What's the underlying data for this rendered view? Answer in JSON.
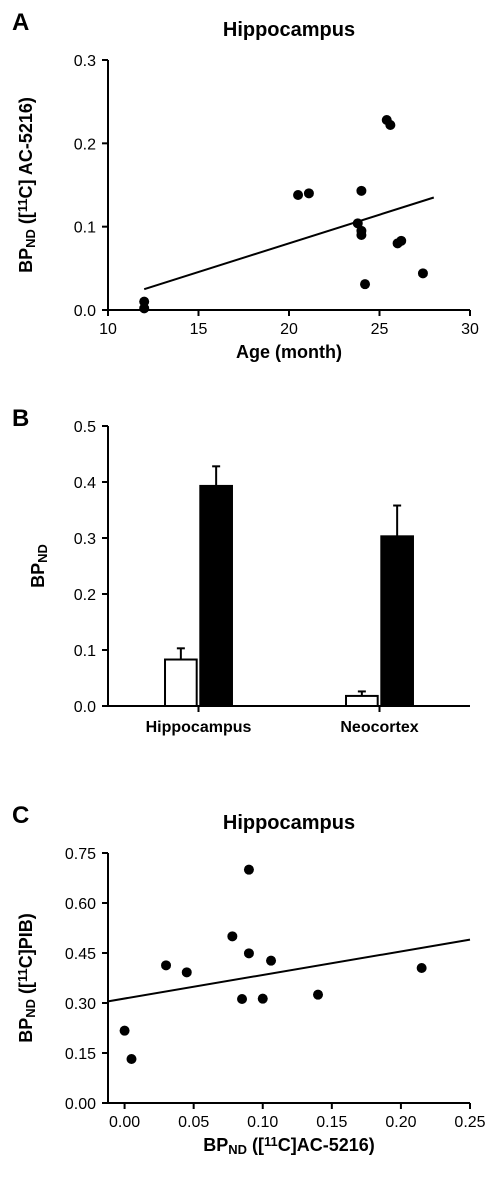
{
  "panelA": {
    "label": "A",
    "title": "Hippocampus",
    "type": "scatter",
    "xlabel": "Age (month)",
    "ylabel": "BP_ND ([^11C] AC-5216)",
    "xlim": [
      10,
      30
    ],
    "ylim": [
      0,
      0.3
    ],
    "xticks": [
      10,
      15,
      20,
      25,
      30
    ],
    "yticks": [
      0.0,
      0.1,
      0.2,
      0.3
    ],
    "points": [
      [
        12,
        0.01
      ],
      [
        12,
        0.002
      ],
      [
        20.5,
        0.138
      ],
      [
        21.1,
        0.14
      ],
      [
        23.8,
        0.104
      ],
      [
        24,
        0.143
      ],
      [
        24,
        0.09
      ],
      [
        24,
        0.095
      ],
      [
        24.2,
        0.031
      ],
      [
        25.4,
        0.228
      ],
      [
        25.6,
        0.222
      ],
      [
        26,
        0.08
      ],
      [
        26.2,
        0.083
      ],
      [
        27.4,
        0.044
      ]
    ],
    "fit_line": {
      "x1": 12,
      "y1": 0.025,
      "x2": 28,
      "y2": 0.135
    },
    "marker_color": "#000000",
    "marker_radius": 5,
    "line_color": "#000000",
    "line_width": 2,
    "axis_color": "#000000",
    "axis_width": 2,
    "tick_len": 6,
    "tick_fontsize": 16,
    "label_fontsize": 18,
    "title_fontsize": 20,
    "panel_label_fontsize": 24
  },
  "panelB": {
    "label": "B",
    "type": "bar",
    "ylabel": "BP_ND",
    "ylim": [
      0,
      0.5
    ],
    "yticks": [
      0.0,
      0.1,
      0.2,
      0.3,
      0.4,
      0.5
    ],
    "groups": [
      "Hippocampus",
      "Neocortex"
    ],
    "series": [
      {
        "fill": "#ffffff",
        "stroke": "#000000",
        "values": [
          0.083,
          0.018
        ],
        "errors": [
          0.02,
          0.008
        ]
      },
      {
        "fill": "#000000",
        "stroke": "#000000",
        "values": [
          0.393,
          0.303
        ],
        "errors": [
          0.035,
          0.055
        ]
      }
    ],
    "bar_width": 0.35,
    "gap_between": 0.02,
    "group_gap": 0.6,
    "axis_color": "#000000",
    "axis_width": 2,
    "tick_len": 6,
    "tick_fontsize": 16,
    "label_fontsize": 18,
    "panel_label_fontsize": 24,
    "err_cap": 8,
    "err_width": 2
  },
  "panelC": {
    "label": "C",
    "title": "Hippocampus",
    "type": "scatter",
    "xlabel": "BP_ND ([^11C]AC-5216)",
    "ylabel": "BP_ND ([^11C]PIB)",
    "xlim": [
      -0.012,
      0.25
    ],
    "ylim": [
      0,
      0.75
    ],
    "xticks": [
      0.0,
      0.05,
      0.1,
      0.15,
      0.2,
      0.25
    ],
    "yticks": [
      0.0,
      0.15,
      0.3,
      0.45,
      0.6,
      0.75
    ],
    "points": [
      [
        0.0,
        0.217
      ],
      [
        0.005,
        0.132
      ],
      [
        0.03,
        0.413
      ],
      [
        0.045,
        0.392
      ],
      [
        0.078,
        0.5
      ],
      [
        0.085,
        0.312
      ],
      [
        0.09,
        0.7
      ],
      [
        0.09,
        0.449
      ],
      [
        0.1,
        0.313
      ],
      [
        0.106,
        0.427
      ],
      [
        0.14,
        0.325
      ],
      [
        0.215,
        0.405
      ]
    ],
    "fit_line": {
      "x1": -0.012,
      "y1": 0.305,
      "x2": 0.25,
      "y2": 0.49
    },
    "marker_color": "#000000",
    "marker_radius": 5,
    "line_color": "#000000",
    "line_width": 2,
    "axis_color": "#000000",
    "axis_width": 2,
    "tick_len": 6,
    "tick_fontsize": 16,
    "label_fontsize": 18,
    "title_fontsize": 20,
    "panel_label_fontsize": 24
  }
}
